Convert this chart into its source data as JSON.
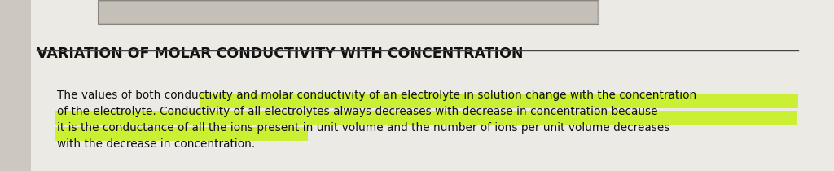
{
  "bg_color": "#d8d4cc",
  "page_bg": "#eceae5",
  "title": "VARIATION OF MOLAR CONDUCTIVITY WITH CONCENTRATION",
  "title_fontsize": 12.5,
  "body_text_line1": "The values of both conductivity and molar conductivity of an electrolyte in solution change with the concentration",
  "body_text_line2": "of the electrolyte. Conductivity of all electrolytes always decreases with decrease in concentration because",
  "body_text_line3": "it is the conductance of all the ions present in unit volume and the number of ions per unit volume decreases",
  "body_text_line4": "with the decrease in concentration.",
  "highlight_color": "#c8f020",
  "body_fontsize": 9.8,
  "top_image_color": "#b0aca4",
  "top_image_border": "#888480",
  "underline_color": "#444444"
}
